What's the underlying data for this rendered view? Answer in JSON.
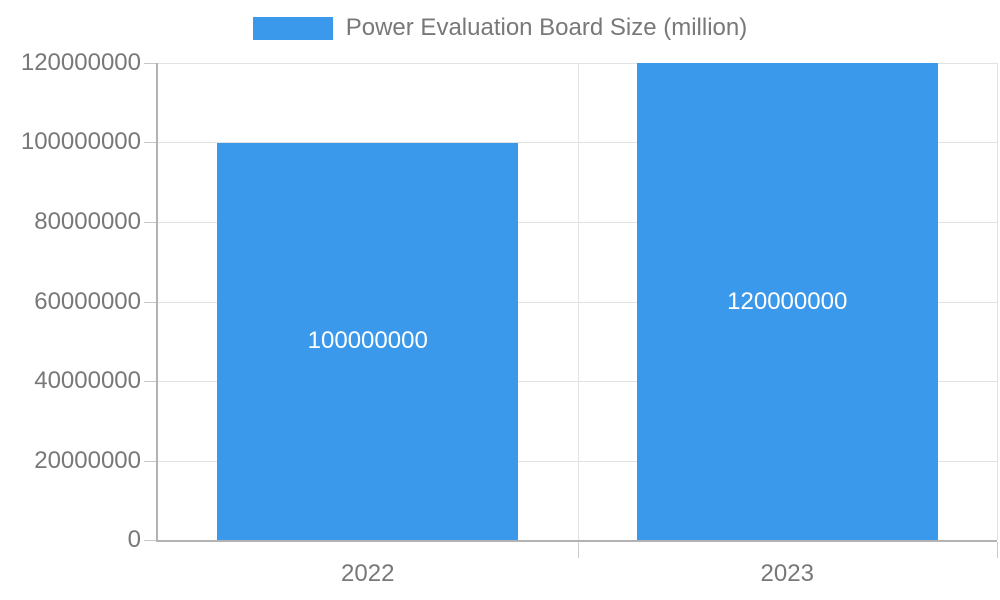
{
  "legend": {
    "label": "Power Evaluation Board Size (million)"
  },
  "colors": {
    "bar": "#3b99eb",
    "axis_text": "#787878",
    "bar_label_text": "#ffffff",
    "gridline": "#e2e2e2",
    "axis_line": "#b2b2b2"
  },
  "chart_data": {
    "type": "bar",
    "categories": [
      "2022",
      "2023"
    ],
    "series": [
      {
        "name": "Power Evaluation Board Size (million)",
        "values": [
          100000000,
          120000000
        ]
      }
    ],
    "bar_value_labels": [
      "100000000",
      "120000000"
    ],
    "title": "",
    "xlabel": "",
    "ylabel": "",
    "ylim": [
      0,
      120000000
    ],
    "yticks": [
      0,
      20000000,
      40000000,
      60000000,
      80000000,
      100000000,
      120000000
    ],
    "grid": true,
    "legend_position": "top-center",
    "bar_width_fraction": 0.717
  }
}
